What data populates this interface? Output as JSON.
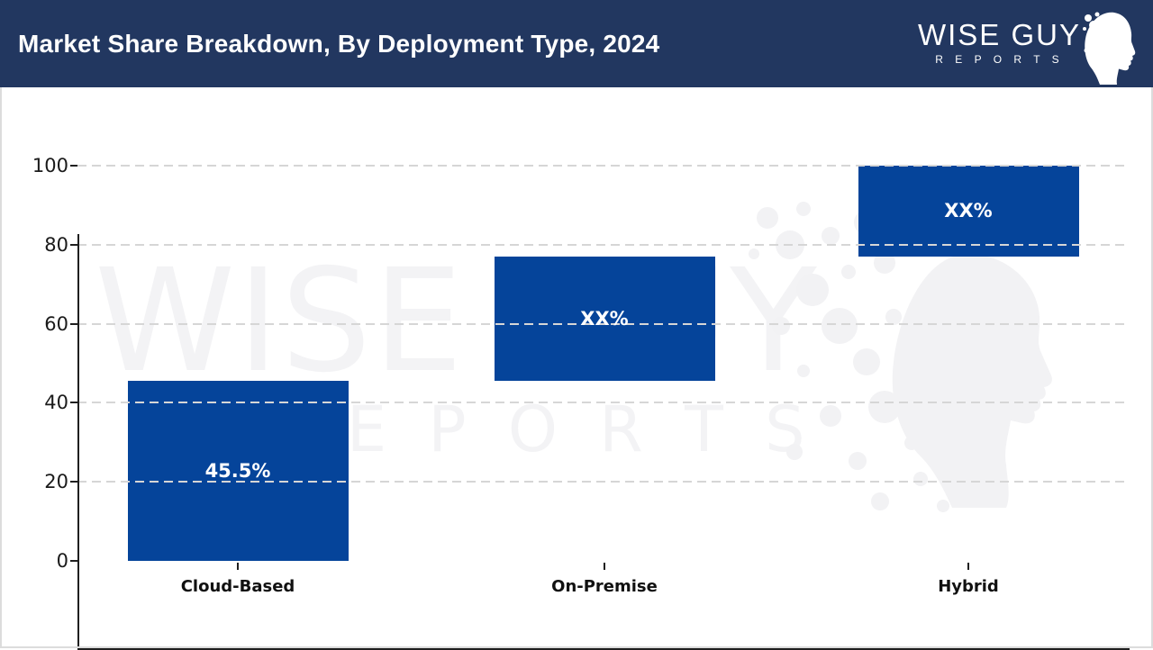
{
  "header": {
    "title": "Market Share Breakdown, By Deployment Type, 2024",
    "logo": {
      "line1": "WISE GUY",
      "line2": "R E P O R T S"
    }
  },
  "watermark": {
    "line1": "WISE GUY",
    "line2": "R E P O R T S"
  },
  "chart_data": {
    "type": "bar",
    "subtype": "floating-segment (waterfall style market share)",
    "title": "Market Share Breakdown, By Deployment Type, 2024",
    "categories": [
      "Cloud-Based",
      "On-Premise",
      "Hybrid"
    ],
    "segments": [
      {
        "category": "Cloud-Based",
        "start": 0,
        "end": 45.5,
        "value": 45.5,
        "label": "45.5%"
      },
      {
        "category": "On-Premise",
        "start": 45.5,
        "end": 77,
        "value": 31.5,
        "label": "XX%"
      },
      {
        "category": "Hybrid",
        "start": 77,
        "end": 100,
        "value": 23,
        "label": "XX%"
      }
    ],
    "ylim": [
      0,
      100
    ],
    "yticks": [
      0,
      20,
      40,
      60,
      80,
      100
    ],
    "xlabel": "",
    "ylabel": "",
    "grid": "horizontal dashed, drawn over bars",
    "legend": "none",
    "bar_color": "#05449a",
    "bar_label_color": "#ffffff"
  },
  "colors": {
    "header_bg": "#223760",
    "bar": "#05449a",
    "grid": "#d6d6d6",
    "axis": "#1f1f1f",
    "watermark": "#f3f3f5",
    "border": "#dcdcdc"
  }
}
